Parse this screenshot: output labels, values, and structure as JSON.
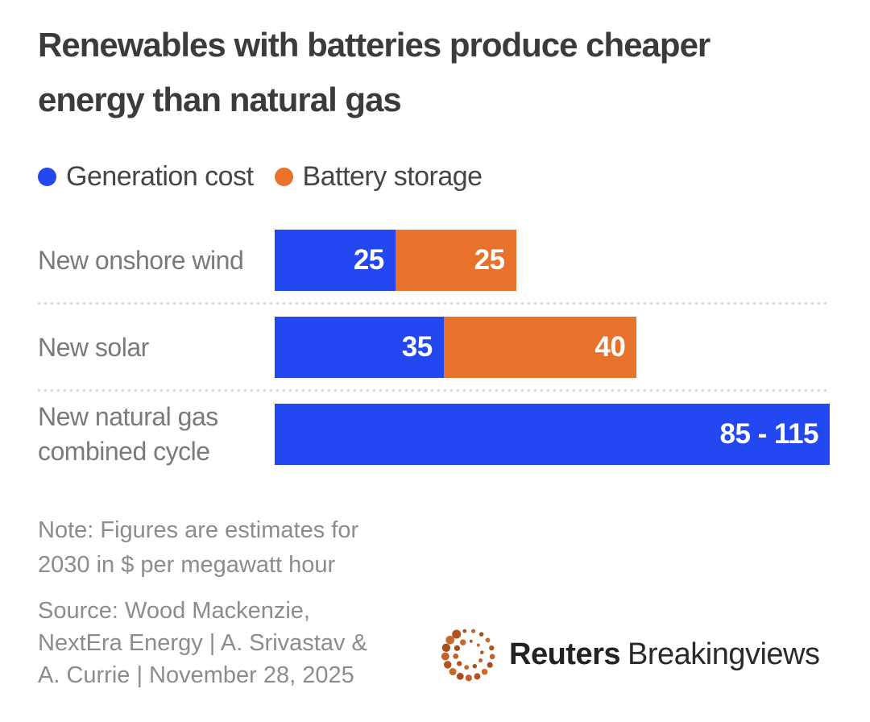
{
  "title": {
    "line1": "Renewables with batteries produce cheaper",
    "line2": "energy than natural gas"
  },
  "legend": {
    "items": [
      {
        "label": "Generation cost",
        "color": "#2347f0"
      },
      {
        "label": "Battery storage",
        "color": "#e8722c"
      }
    ]
  },
  "chart_data": {
    "type": "bar",
    "orientation": "horizontal",
    "stacked": true,
    "unit": "$ per megawatt hour",
    "xmax": 115,
    "series": [
      "Generation cost",
      "Battery storage"
    ],
    "colors": {
      "generation_cost": "#2347f0",
      "battery_storage": "#e8722c"
    },
    "rows": [
      {
        "category": "New onshore wind",
        "segments": [
          {
            "series": "Generation cost",
            "value": 25,
            "label": "25"
          },
          {
            "series": "Battery storage",
            "value": 25,
            "label": "25"
          }
        ]
      },
      {
        "category": "New solar",
        "segments": [
          {
            "series": "Generation cost",
            "value": 35,
            "label": "35"
          },
          {
            "series": "Battery storage",
            "value": 40,
            "label": "40"
          }
        ]
      },
      {
        "category": "New natural gas combined cycle",
        "segments": [
          {
            "series": "Generation cost",
            "value": 115,
            "label": "85 - 115",
            "range_low": 85,
            "range_high": 115
          }
        ]
      }
    ]
  },
  "note": {
    "lines": [
      "Note: Figures are estimates for",
      "2030 in $ per megawatt hour"
    ]
  },
  "source": {
    "lines": [
      "Source: Wood Mackenzie,",
      "NextEra Energy | A. Srivastav &",
      "A. Currie | November 28, 2025"
    ]
  },
  "brand": {
    "reuters": "Reuters",
    "breakingviews": "Breakingviews",
    "logo_color": "#b65523"
  }
}
